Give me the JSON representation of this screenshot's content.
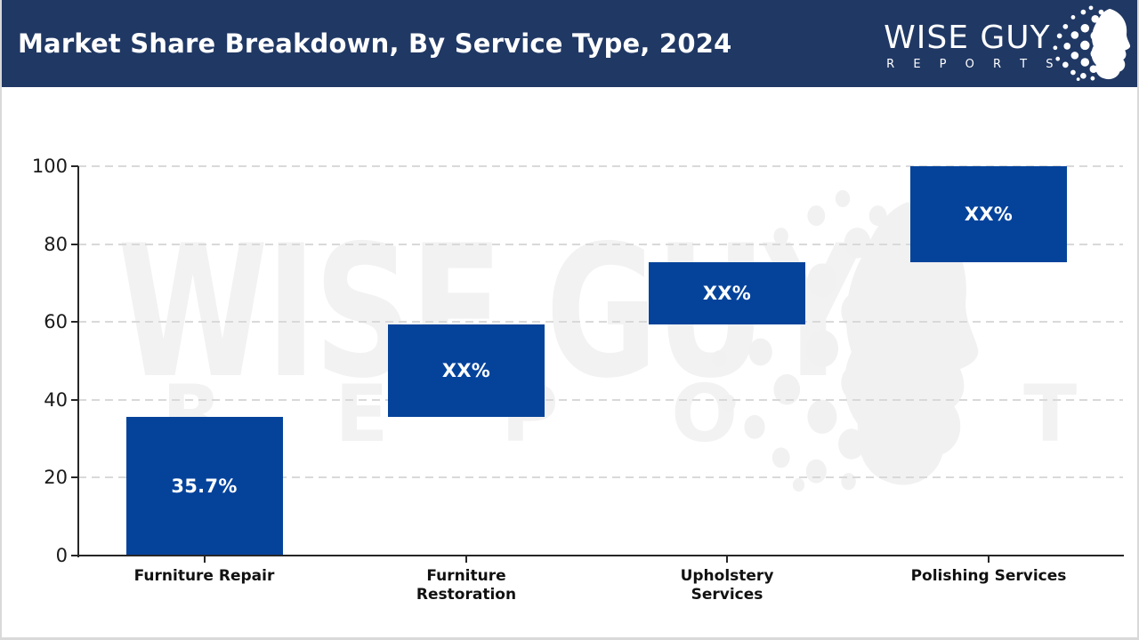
{
  "header": {
    "title": "Market Share Breakdown, By Service Type, 2024",
    "logo": {
      "primary": "WISE GUY",
      "secondary": "R E P O R T S"
    },
    "bg_color": "#203864",
    "text_color": "#ffffff"
  },
  "watermark": {
    "line1": "WISE GUY",
    "line2": "R E P O R T S"
  },
  "chart_data": {
    "type": "bar",
    "subtype": "waterfall",
    "title": "Market Share Breakdown, By Service Type, 2024",
    "categories": [
      "Furniture Repair",
      "Furniture\nRestoration",
      "Upholstery\nServices",
      "Polishing Services"
    ],
    "segments": [
      {
        "category": "Furniture Repair",
        "start": 0,
        "end": 35.7,
        "value_label": "35.7%"
      },
      {
        "category": "Furniture Restoration",
        "start": 35.7,
        "end": 59.4,
        "value_label": "XX%"
      },
      {
        "category": "Upholstery Services",
        "start": 59.4,
        "end": 75.3,
        "value_label": "XX%"
      },
      {
        "category": "Polishing Services",
        "start": 75.3,
        "end": 100,
        "value_label": "XX%"
      }
    ],
    "xlabel": "",
    "ylabel": "",
    "ylim": [
      0,
      100
    ],
    "yticks": [
      0,
      20,
      40,
      60,
      80,
      100
    ],
    "grid": "horizontal-dashed",
    "legend": "none",
    "bar_color": "#05439b",
    "bar_label_color": "#ffffff",
    "axis_color": "#262626",
    "grid_color": "#d9d9d9"
  }
}
